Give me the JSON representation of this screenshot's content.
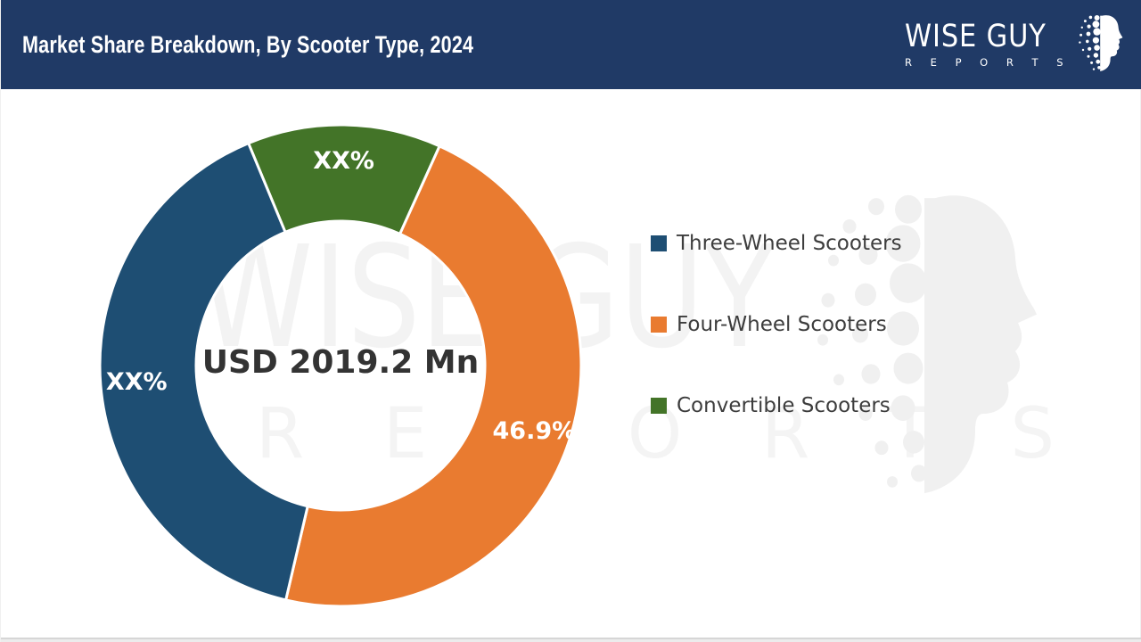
{
  "header": {
    "title": "Market Share Breakdown, By Scooter Type, 2024",
    "logo": {
      "name": "WISE GUY",
      "sub": "R E P O R T S"
    }
  },
  "watermark": {
    "text": "WISE GUY",
    "sub": "R E P O R T S"
  },
  "colors": {
    "header_bg": "#203a66",
    "blue": "#1e4e73",
    "orange": "#e97b30",
    "green": "#437428",
    "watermark_gray": "#f0f0f0"
  },
  "chart_data": {
    "type": "pie",
    "subtype": "donut",
    "title": "Market Share Breakdown, By Scooter Type, 2024",
    "center_label": "USD 2019.2 Mn",
    "start_angle_deg": -22.5,
    "inner_radius_ratio": 0.6,
    "legend_position": "right",
    "slices": [
      {
        "name": "Convertible Scooters",
        "label": "XX%",
        "pct": 13.0,
        "color": "#437428"
      },
      {
        "name": "Four-Wheel Scooters",
        "label": "46.9%",
        "pct": 46.9,
        "color": "#e97b30"
      },
      {
        "name": "Three-Wheel Scooters",
        "label": "XX%",
        "pct": 40.1,
        "color": "#1e4e73"
      }
    ]
  },
  "legend": {
    "items": [
      {
        "label": "Three-Wheel Scooters",
        "color": "#1e4e73"
      },
      {
        "label": "Four-Wheel Scooters",
        "color": "#e97b30"
      },
      {
        "label": "Convertible Scooters",
        "color": "#437428"
      }
    ]
  }
}
